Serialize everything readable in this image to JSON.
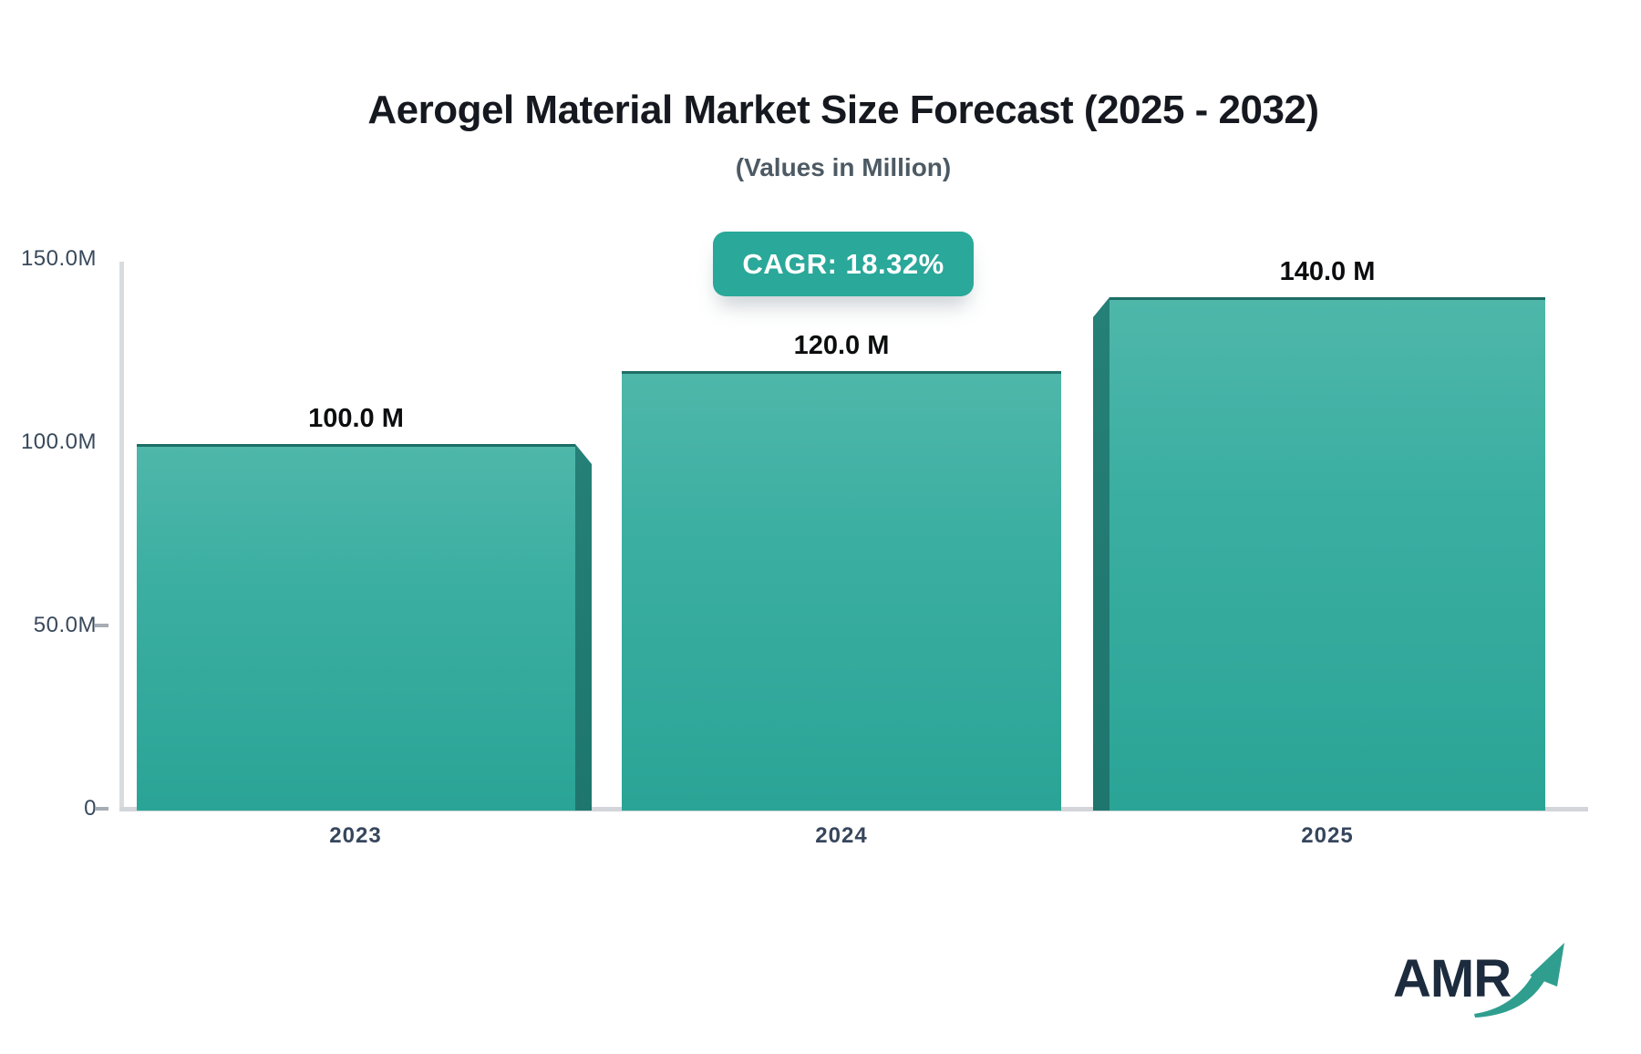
{
  "chart_data": {
    "type": "bar",
    "title": "Aerogel Material Market Size Forecast (2025 - 2032)",
    "subtitle": "(Values in Million)",
    "cagr_label": "CAGR: 18.32%",
    "categories": [
      "2023",
      "2024",
      "2025"
    ],
    "values": [
      100,
      120,
      140
    ],
    "value_labels": [
      "100.0 M",
      "120.0 M",
      "140.0 M"
    ],
    "ylim": [
      0,
      150
    ],
    "yticks": [
      {
        "label": "150.0M",
        "value": 150
      },
      {
        "label": "100.0M",
        "value": 100
      },
      {
        "label": "50.0M",
        "value": 50
      },
      {
        "label": "0",
        "value": 0
      }
    ],
    "grid": false,
    "legend": false,
    "colors": {
      "bar_top": "#4eb7aa",
      "bar_bottom": "#2aa496",
      "bar_side_face": "#217b73",
      "badge": "#2aa89a",
      "axis": "#d5d9dd",
      "logo_navy": "#1c2b3d",
      "logo_arrow_teal": "#2f9e8f"
    }
  },
  "branding": {
    "logo_text": "AMR"
  }
}
